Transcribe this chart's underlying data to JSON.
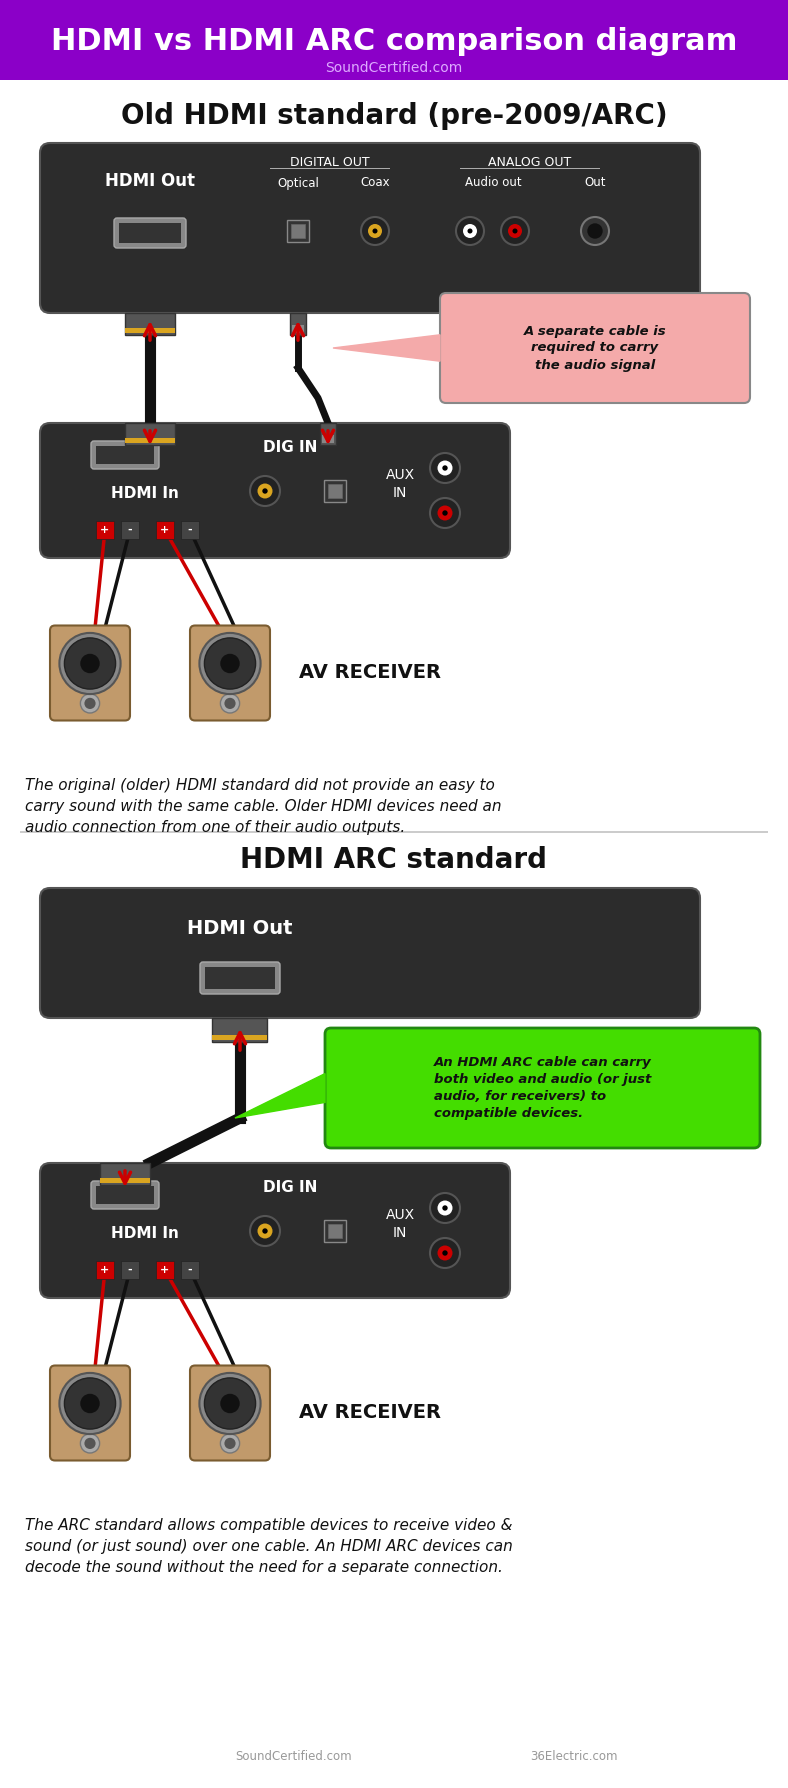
{
  "title": "HDMI vs HDMI ARC comparison diagram",
  "subtitle": "SoundCertified.com",
  "title_bg": "#8B00C8",
  "title_fg": "#FFFFFF",
  "subtitle_fg": "#DDAAFF",
  "section1_title": "Old HDMI standard (pre-2009/ARC)",
  "section2_title": "HDMI ARC standard",
  "bg_color": "#FFFFFF",
  "tv_box_color": "#2a2a2a",
  "receiver_box_color": "#2a2a2a",
  "cable_color": "#111111",
  "red_arrow_color": "#cc0000",
  "callout1_bg": "#F4AAAA",
  "callout1_text": "A separate cable is\nrequired to carry\nthe audio signal",
  "callout2_bg": "#44DD00",
  "callout2_text": "An HDMI ARC cable can carry\nboth video and audio (or just\naudio, for receivers) to\ncompatible devices.",
  "desc1": "The original (older) HDMI standard did not provide an easy to\ncarry sound with the same cable. Older HDMI devices need an\naudio connection from one of their audio outputs.",
  "desc2": "The ARC standard allows compatible devices to receive video &\nsound (or just sound) over one cable. An HDMI ARC devices can\ndecode the sound without the need for a separate connection.",
  "footer_left": "SoundCertified.com",
  "footer_right": "36Electric.com",
  "speaker_color": "#C19A6B",
  "gold_stripe": "#DAA520",
  "coax_port_color": "#DAA520"
}
